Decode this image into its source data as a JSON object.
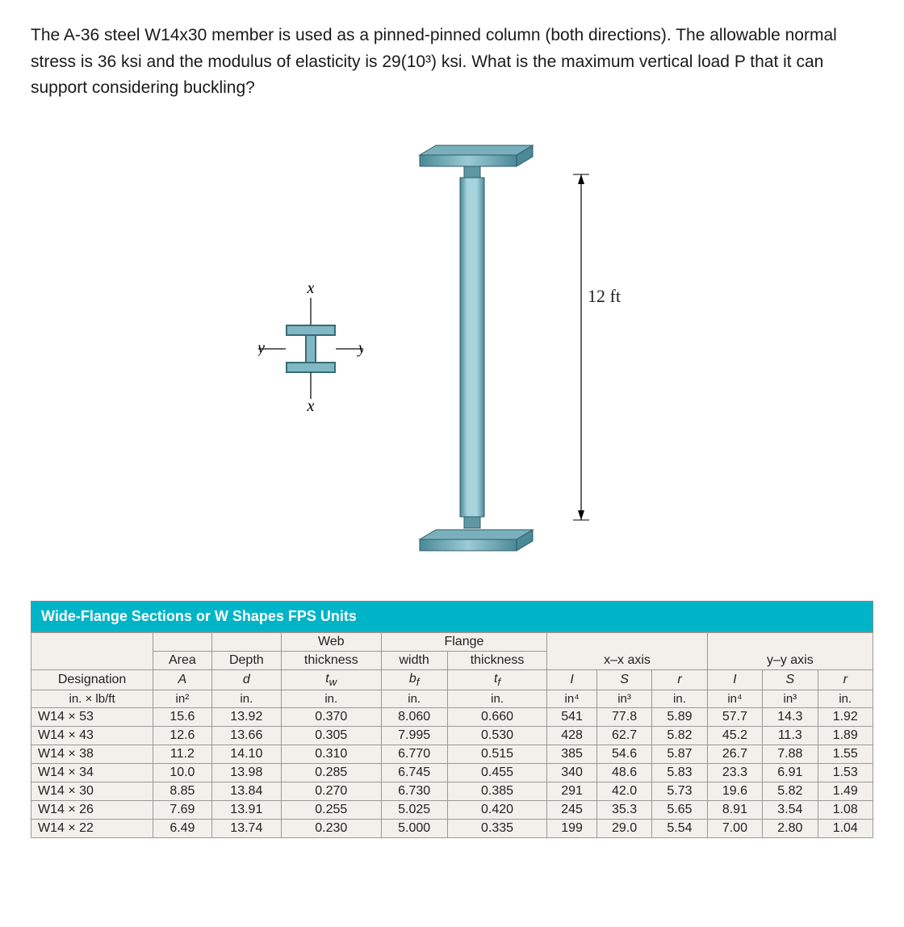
{
  "problem": {
    "text": "The A-36 steel W14x30 member is used as a pinned-pinned column (both directions).  The allowable normal stress is 36 ksi and the modulus of elasticity is 29(10³) ksi.  What is the maximum vertical load P that it can support considering buckling?"
  },
  "figure": {
    "cross_section": {
      "axis_x_top": "x",
      "axis_x_bottom": "x",
      "axis_y_left": "y",
      "axis_y_right": "y"
    },
    "height_label": "12 ft",
    "column_color_light": "#8ec9d4",
    "column_color_dark": "#4a8996",
    "cap_color": "#6aa9b3"
  },
  "table": {
    "title": "Wide-Flange Sections or W Shapes  FPS Units",
    "headers": {
      "designation": "Designation",
      "area": "Area",
      "depth": "Depth",
      "web_thickness_top": "Web",
      "web_thickness_bottom": "thickness",
      "flange": "Flange",
      "flange_width": "width",
      "flange_thickness": "thickness",
      "xx_axis": "x–x axis",
      "yy_axis": "y–y axis",
      "A": "A",
      "d": "d",
      "tw": "t",
      "bf": "b",
      "tf": "t",
      "I": "I",
      "S": "S",
      "r": "r"
    },
    "units": {
      "designation": "in. × lb/ft",
      "area": "in²",
      "depth": "in.",
      "tw": "in.",
      "bf": "in.",
      "tf": "in.",
      "Ixx": "in⁴",
      "Sxx": "in³",
      "rxx": "in.",
      "Iyy": "in⁴",
      "Syy": "in³",
      "ryy": "in."
    },
    "rows": [
      {
        "desig": "W14 × 53",
        "A": "15.6",
        "d": "13.92",
        "tw": "0.370",
        "bf": "8.060",
        "tf": "0.660",
        "Ixx": "541",
        "Sxx": "77.8",
        "rxx": "5.89",
        "Iyy": "57.7",
        "Syy": "14.3",
        "ryy": "1.92"
      },
      {
        "desig": "W14 × 43",
        "A": "12.6",
        "d": "13.66",
        "tw": "0.305",
        "bf": "7.995",
        "tf": "0.530",
        "Ixx": "428",
        "Sxx": "62.7",
        "rxx": "5.82",
        "Iyy": "45.2",
        "Syy": "11.3",
        "ryy": "1.89"
      },
      {
        "desig": "W14 × 38",
        "A": "11.2",
        "d": "14.10",
        "tw": "0.310",
        "bf": "6.770",
        "tf": "0.515",
        "Ixx": "385",
        "Sxx": "54.6",
        "rxx": "5.87",
        "Iyy": "26.7",
        "Syy": "7.88",
        "ryy": "1.55"
      },
      {
        "desig": "W14 × 34",
        "A": "10.0",
        "d": "13.98",
        "tw": "0.285",
        "bf": "6.745",
        "tf": "0.455",
        "Ixx": "340",
        "Sxx": "48.6",
        "rxx": "5.83",
        "Iyy": "23.3",
        "Syy": "6.91",
        "ryy": "1.53"
      },
      {
        "desig": "W14 × 30",
        "A": "8.85",
        "d": "13.84",
        "tw": "0.270",
        "bf": "6.730",
        "tf": "0.385",
        "Ixx": "291",
        "Sxx": "42.0",
        "rxx": "5.73",
        "Iyy": "19.6",
        "Syy": "5.82",
        "ryy": "1.49"
      },
      {
        "desig": "W14 × 26",
        "A": "7.69",
        "d": "13.91",
        "tw": "0.255",
        "bf": "5.025",
        "tf": "0.420",
        "Ixx": "245",
        "Sxx": "35.3",
        "rxx": "5.65",
        "Iyy": "8.91",
        "Syy": "3.54",
        "ryy": "1.08"
      },
      {
        "desig": "W14 × 22",
        "A": "6.49",
        "d": "13.74",
        "tw": "0.230",
        "bf": "5.000",
        "tf": "0.335",
        "Ixx": "199",
        "Sxx": "29.0",
        "rxx": "5.54",
        "Iyy": "7.00",
        "Syy": "2.80",
        "ryy": "1.04"
      }
    ],
    "colors": {
      "title_bg": "#00b4c8",
      "title_text": "#ffffff",
      "body_bg": "#f3f0eb",
      "border": "#999999"
    }
  }
}
